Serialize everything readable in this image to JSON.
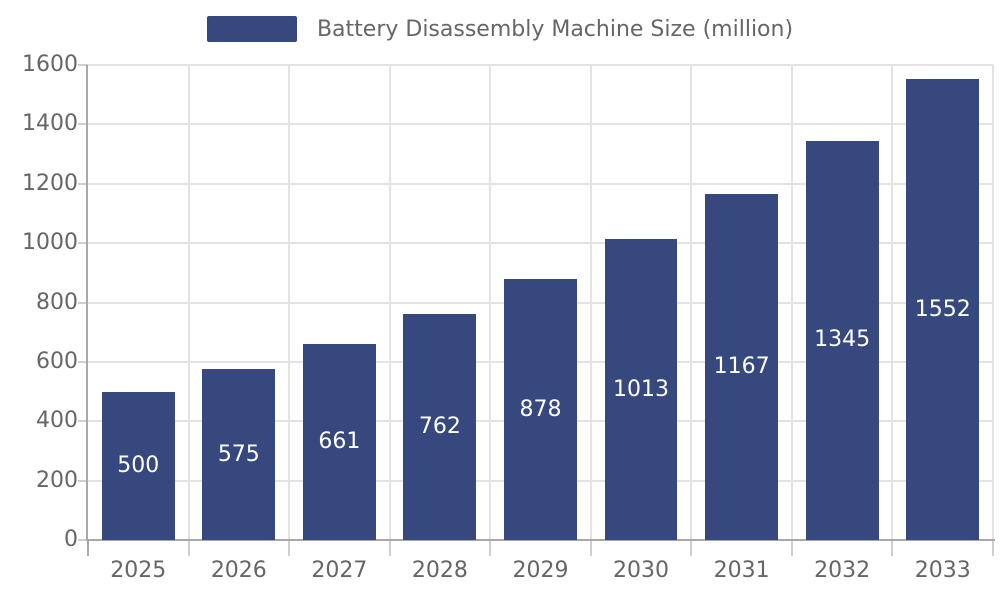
{
  "legend": {
    "items": [
      {
        "label": "Battery Disassembly Machine Size (million)",
        "swatch_color": "#36487E"
      }
    ]
  },
  "colors": {
    "bar": "#36487E",
    "grid": "#E3E3E3",
    "axis": "#A8A8A8",
    "tick": "#CFCFCF",
    "text": "#666666",
    "value_label": "#FFFFFF",
    "background": "#FFFFFF"
  },
  "chart_data": {
    "type": "bar",
    "title": "Battery Disassembly Machine Size (million)",
    "categories": [
      "2025",
      "2026",
      "2027",
      "2028",
      "2029",
      "2030",
      "2031",
      "2032",
      "2033"
    ],
    "values": [
      500,
      575,
      661,
      762,
      878,
      1013,
      1167,
      1345,
      1552
    ],
    "series": [
      {
        "name": "Battery Disassembly Machine Size (million)",
        "values": [
          500,
          575,
          661,
          762,
          878,
          1013,
          1167,
          1345,
          1552
        ]
      }
    ],
    "xlabel": "",
    "ylabel": "",
    "ylim": [
      0,
      1600
    ],
    "yticks": [
      0,
      200,
      400,
      600,
      800,
      1000,
      1200,
      1400,
      1600
    ],
    "grid": true,
    "legend_position": "top-center",
    "value_labels": "inside-center"
  }
}
